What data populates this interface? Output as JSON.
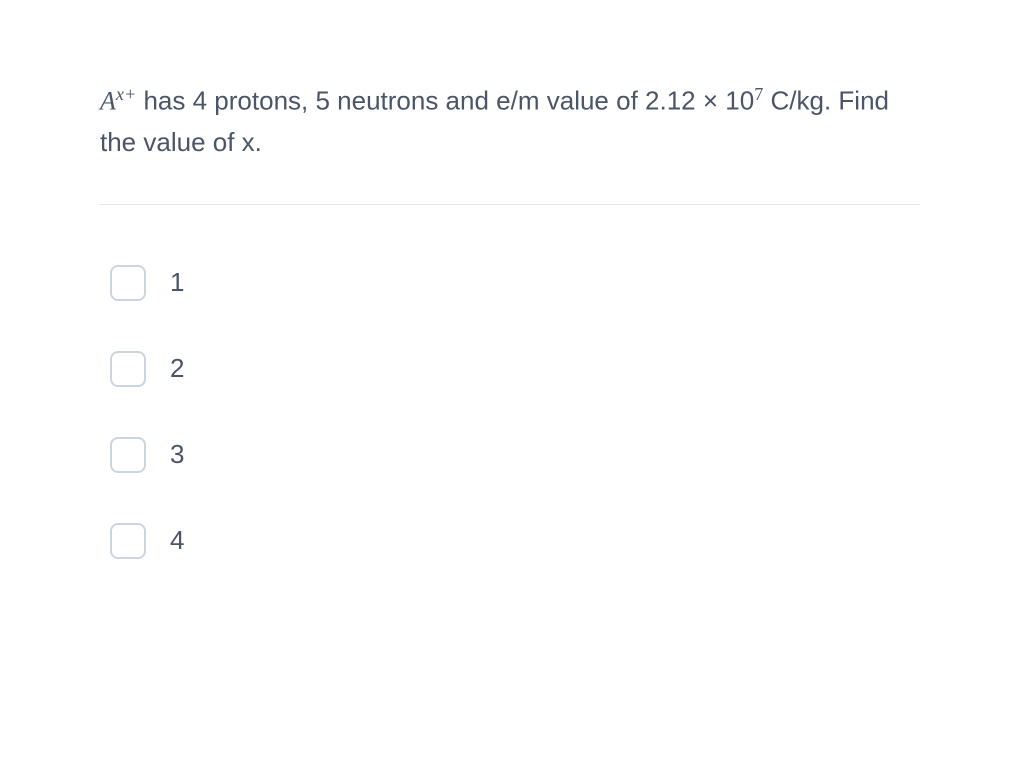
{
  "question": {
    "symbol_base": "A",
    "symbol_superscript": "x+",
    "text_part1": " has 4 protons, 5 neutrons and e/m value of ",
    "coefficient": "2.12",
    "times": " × ",
    "base": "10",
    "exponent": "7",
    "units_and_prompt": " C/kg. Find the value of x.",
    "text_color": "#4a5568",
    "font_size": 26
  },
  "divider": {
    "color": "#e2e8f0"
  },
  "options": [
    {
      "label": "1",
      "checked": false
    },
    {
      "label": "2",
      "checked": false
    },
    {
      "label": "3",
      "checked": false
    },
    {
      "label": "4",
      "checked": false
    }
  ],
  "checkbox_style": {
    "border_color": "#cbd5e0",
    "border_radius": 8,
    "size": 36
  },
  "background_color": "#ffffff"
}
